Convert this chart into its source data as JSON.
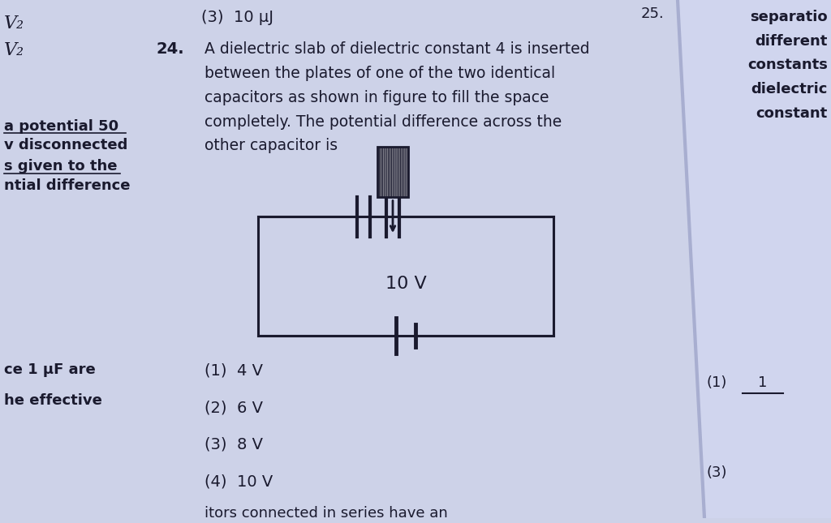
{
  "bg_color_left": "#cdd2e8",
  "bg_color_right": "#d8dcf0",
  "text_color": "#1a1a2e",
  "title_num": "24.",
  "question_text_lines": [
    "A dielectric slab of dielectric constant 4 is inserted",
    "between the plates of one of the two identical",
    "capacitors as shown in figure to fill the space",
    "completely. The potential difference across the",
    "other capacitor is"
  ],
  "top_left_lines": [
    "V₂",
    "V₂",
    "a potential 50",
    "v disconnected",
    "s given to the",
    "ntial difference"
  ],
  "top_right_lines": [
    "separatio",
    "different",
    "constants",
    "dielectric",
    "constant"
  ],
  "top_label": "(3)  10 μJ",
  "top_right_num": "25.",
  "options": [
    "(1)  4 V",
    "(2)  6 V",
    "(3)  8 V",
    "(4)  10 V"
  ],
  "bottom_left": [
    "ce 1 μF are",
    "he effective"
  ],
  "bottom_right_opts": [
    "(1)",
    "(3)"
  ],
  "circuit_label": "10 V",
  "bottom_text": "itors connected in series have an"
}
